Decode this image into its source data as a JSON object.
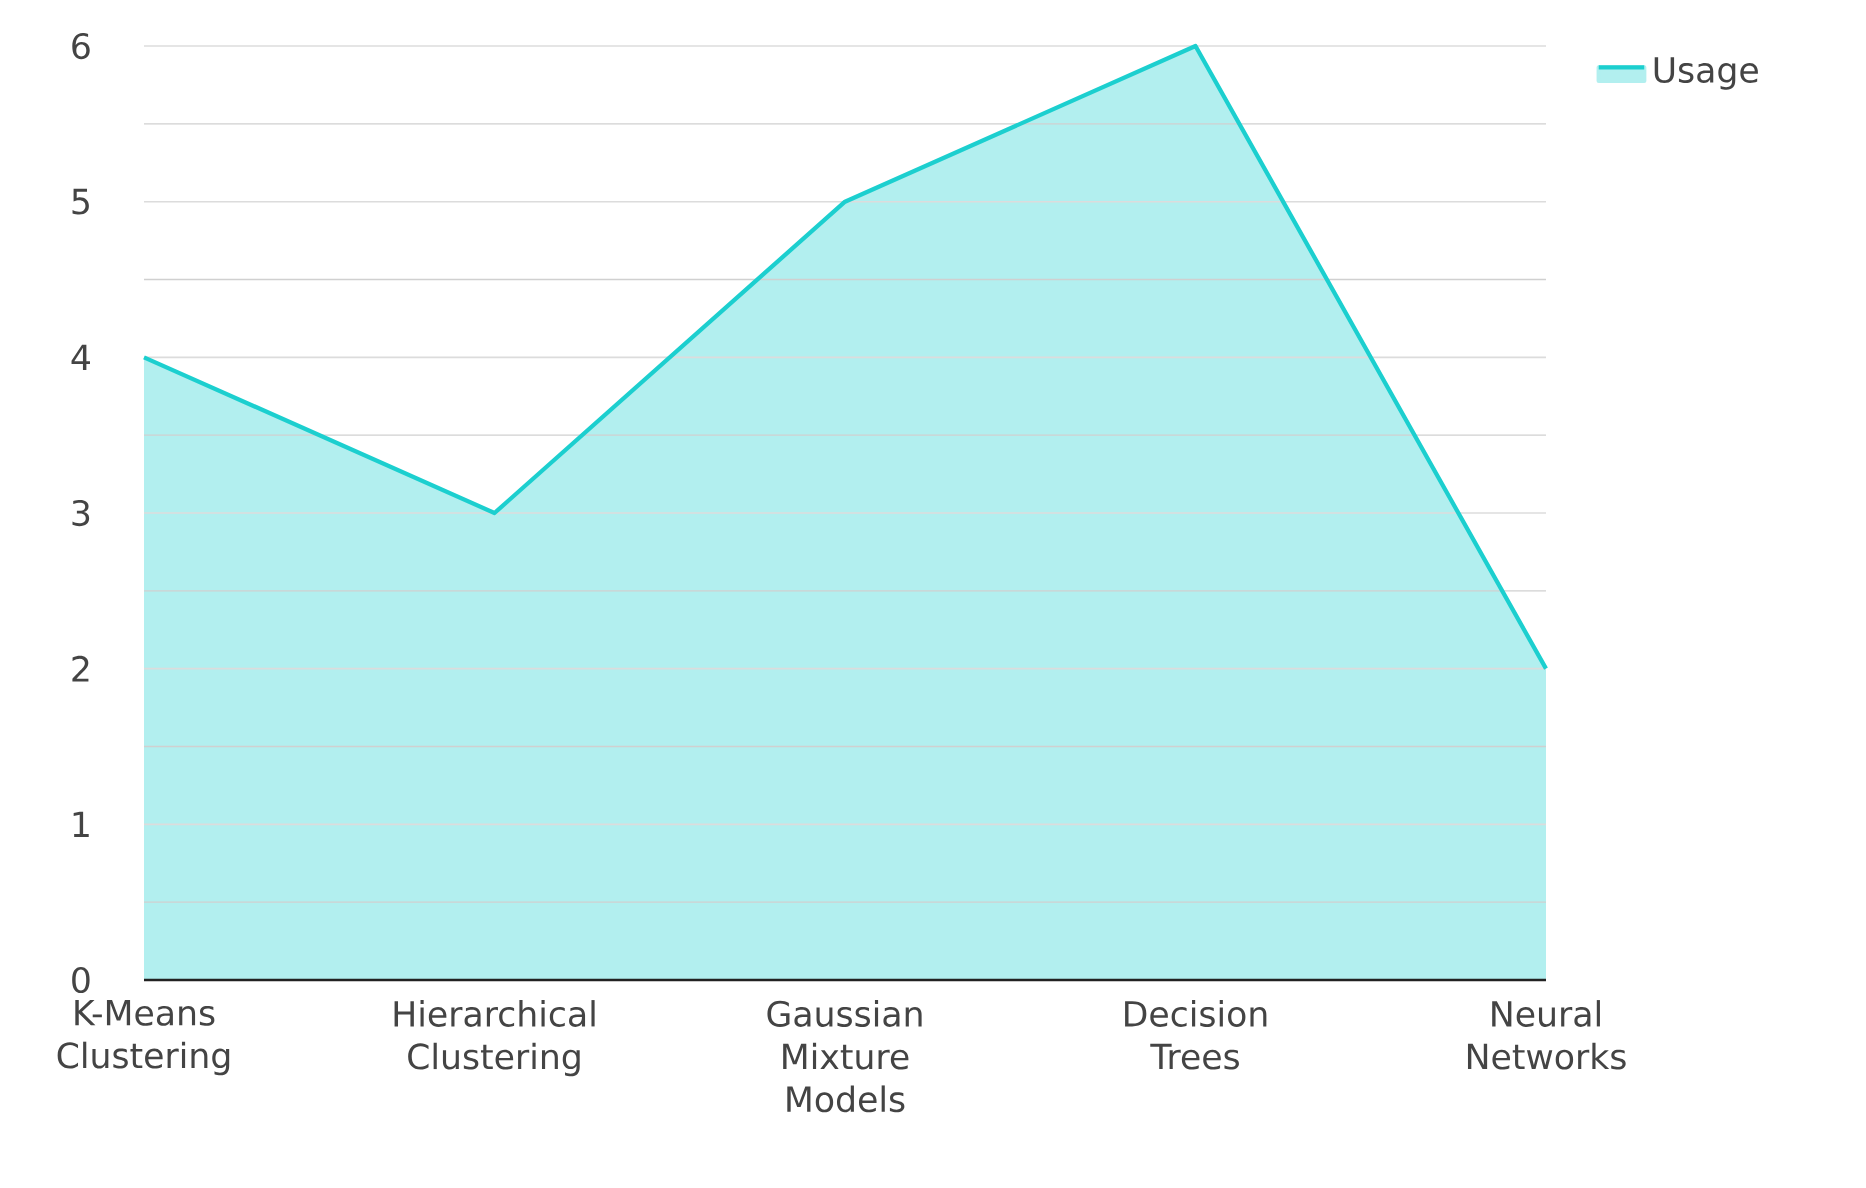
{
  "chart_data": {
    "type": "area",
    "categories": [
      "K-Means Clustering",
      "Hierarchical Clustering",
      "Gaussian Mixture Models",
      "Decision Trees",
      "Neural Networks"
    ],
    "series": [
      {
        "name": "Usage",
        "color": "#1ccfcf",
        "values": [
          4,
          3,
          5,
          6,
          2
        ]
      }
    ],
    "ylim": [
      0,
      6
    ],
    "yticks": [
      0,
      1,
      2,
      3,
      4,
      5,
      6
    ],
    "grid": "y",
    "legend": "top right"
  }
}
